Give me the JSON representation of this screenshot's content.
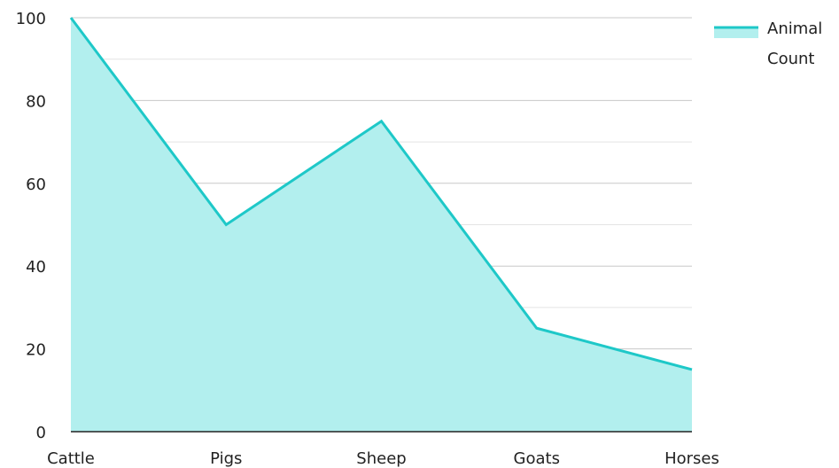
{
  "chart_data": {
    "type": "area",
    "categories": [
      "Cattle",
      "Pigs",
      "Sheep",
      "Goats",
      "Horses"
    ],
    "series": [
      {
        "name": "Animal Count",
        "values": [
          100,
          50,
          75,
          25,
          15
        ]
      }
    ],
    "ylim": [
      0,
      100
    ],
    "yticks": [
      0,
      20,
      40,
      60,
      80,
      100
    ],
    "grid": true,
    "legend": {
      "position": "top-right",
      "label_lines": [
        "Animal",
        "Count"
      ]
    },
    "colors": {
      "line": "#1ec8c8",
      "fill": "#b2efee",
      "grid": "#c8c8c8",
      "axis": "#222222"
    }
  }
}
